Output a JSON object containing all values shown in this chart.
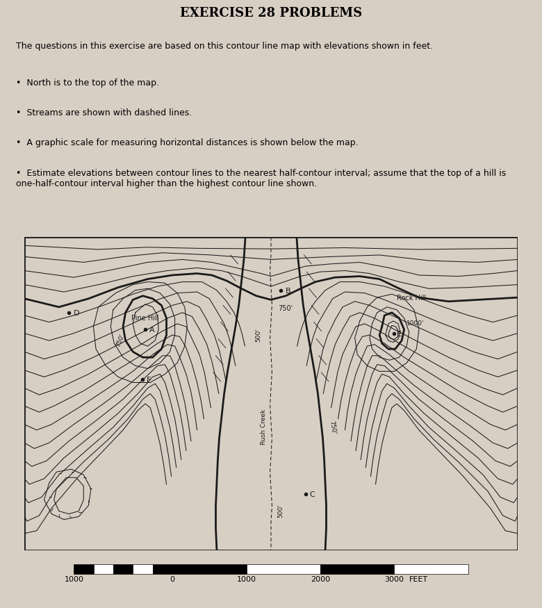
{
  "title": "EXERCISE 28 PROBLEMS",
  "subtitle": "The questions in this exercise are based on this contour line map with elevations shown in feet.",
  "bullets": [
    "North is to the top of the map.",
    "Streams are shown with dashed lines.",
    "A graphic scale for measuring horizontal distances is shown below the map.",
    "Estimate elevations between contour lines to the nearest half-contour interval; assume that the top of a hill is one-half-contour interval higher than the highest contour line shown."
  ],
  "bg_color": "#d8cfc4",
  "map_bg": "#f0ebe3",
  "line_color": "#1a1a1a",
  "title_fontsize": 13,
  "text_fontsize": 9,
  "bullet_fontsize": 9
}
